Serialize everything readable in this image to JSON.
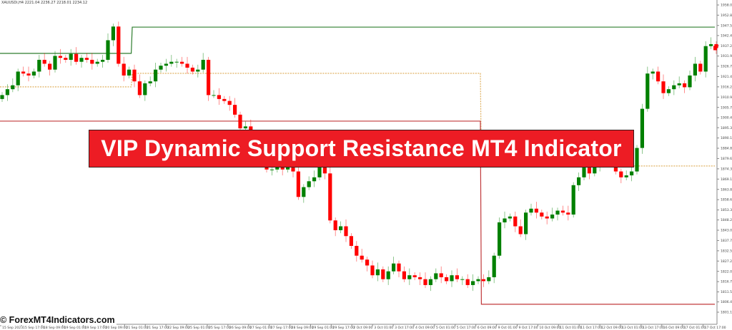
{
  "header": {
    "symbol_info": "XAUUSDi,H4  2221.04 2236.27 2218.01 2234.12"
  },
  "banner": {
    "title": "VIP Dynamic Support Resistance MT4 Indicator"
  },
  "watermark": {
    "text": "© ForexMT4Indicators.com"
  },
  "colors": {
    "bull": "#008000",
    "bear": "#ff0000",
    "resistance": "#2e7d2e",
    "mid": "#e0b060",
    "support": "#c0393b",
    "banner": "#ed1c24"
  },
  "chart_data": {
    "type": "candlestick",
    "symbol": "XAUUSDi",
    "timeframe": "H4",
    "ylim": [
      1801.15,
      1958.0
    ],
    "y_ticks": [
      "1958.00",
      "1952.80",
      "1947.55",
      "1942.40",
      "1937.20",
      "1931.95",
      "1926.70",
      "1921.45",
      "1916.20",
      "1910.95",
      "1905.70",
      "1900.45",
      "1895.35",
      "1890.10",
      "1884.85",
      "1879.60",
      "1874.35",
      "1869.10",
      "1863.85",
      "1858.60",
      "1853.35",
      "1848.25",
      "1843.00",
      "1837.75",
      "1832.50",
      "1827.25",
      "1822.00",
      "1816.75",
      "1811.50",
      "1806.40",
      "1801.15"
    ],
    "x_ticks": [
      "15 Sep 2023",
      "15 Sep 17:00",
      "18 Sep 09:00",
      "19 Sep 01:00",
      "19 Sep 17:00",
      "20 Sep 09:00",
      "21 Sep 01:00",
      "21 Sep 17:00",
      "22 Sep 09:00",
      "25 Sep 01:00",
      "25 Sep 17:00",
      "26 Sep 09:00",
      "27 Sep 01:00",
      "27 Sep 17:00",
      "28 Sep 09:00",
      "29 Sep 01:00",
      "29 Sep 17:00",
      "2 Oct 09:00",
      "3 Oct 01:00",
      "3 Oct 17:00",
      "4 Oct 09:00",
      "5 Oct 01:00",
      "5 Oct 17:00",
      "6 Oct 09:00",
      "9 Oct 01:00",
      "9 Oct 17:00",
      "10 Oct 09:00",
      "11 Oct 01:00",
      "11 Oct 17:00",
      "12 Oct 09:00",
      "13 Oct 01:00",
      "13 Oct 17:00",
      "16 Oct 09:00",
      "17 Oct 01:00",
      "17 Oct 17:00"
    ],
    "closes": [
      1912,
      1915,
      1917,
      1924,
      1923,
      1922,
      1924,
      1930,
      1928,
      1925,
      1932,
      1931,
      1930,
      1933,
      1929,
      1931,
      1930,
      1928,
      1929,
      1930,
      1940,
      1947,
      1928,
      1922,
      1925,
      1919,
      1912,
      1918,
      1919,
      1925,
      1927,
      1928,
      1929,
      1929,
      1928,
      1926,
      1924,
      1925,
      1930,
      1912,
      1912,
      1910,
      1909,
      1907,
      1902,
      1895,
      1896,
      1890,
      1885,
      1880,
      1874,
      1874,
      1876,
      1874,
      1875,
      1873,
      1860,
      1865,
      1868,
      1870,
      1876,
      1872,
      1848,
      1843,
      1845,
      1840,
      1835,
      1830,
      1828,
      1825,
      1820,
      1823,
      1818,
      1822,
      1826,
      1822,
      1818,
      1820,
      1819,
      1818,
      1815,
      1818,
      1821,
      1819,
      1817,
      1820,
      1818,
      1818,
      1815,
      1817,
      1818,
      1817,
      1819,
      1830,
      1847,
      1849,
      1850,
      1845,
      1841,
      1852,
      1854,
      1852,
      1850,
      1849,
      1851,
      1853,
      1852,
      1851,
      1866,
      1870,
      1875,
      1872,
      1876,
      1879,
      1883,
      1880,
      1873,
      1870,
      1871,
      1873,
      1885,
      1905,
      1923,
      1924,
      1919,
      1913,
      1915,
      1917,
      1918,
      1916,
      1922,
      1928,
      1924,
      1937,
      1938,
      1936
    ],
    "levels": {
      "resistance": [
        {
          "from_bar": 0,
          "to_bar": 24,
          "price": 1933.3
        },
        {
          "from_bar": 25,
          "to_bar": 135,
          "price": 1946.7
        }
      ],
      "mid": [
        {
          "from_bar": 0,
          "to_bar": 24,
          "price": 1916.2
        },
        {
          "from_bar": 25,
          "to_bar": 90,
          "price": 1923.1
        },
        {
          "from_bar": 91,
          "to_bar": 135,
          "price": 1875.8
        }
      ],
      "support": [
        {
          "from_bar": 0,
          "to_bar": 90,
          "price": 1898.7
        },
        {
          "from_bar": 91,
          "to_bar": 135,
          "price": 1805.2
        }
      ]
    }
  }
}
